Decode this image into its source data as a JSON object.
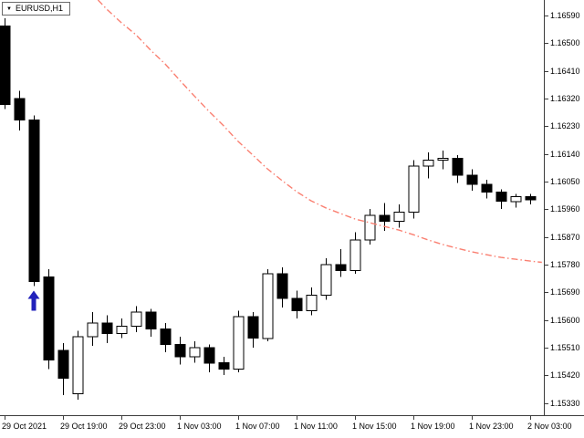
{
  "header": {
    "symbol_label": "EURUSD,H1",
    "dropdown_glyph": "▼"
  },
  "chart_data": {
    "type": "candlestick",
    "title": "EURUSD,H1",
    "symbol": "EURUSD",
    "timeframe": "H1",
    "grid": false,
    "background": "#ffffff",
    "colors": {
      "bull": "#ffffff",
      "bear": "#000000",
      "outline": "#000000",
      "axis_line": "#3c3c3c",
      "axis_text": "#000000"
    },
    "price_axis": {
      "min": 1.1529,
      "max": 1.1664,
      "labels": [
        "1.16590",
        "1.16500",
        "1.16410",
        "1.16320",
        "1.16230",
        "1.16140",
        "1.16050",
        "1.15960",
        "1.15870",
        "1.15780",
        "1.15690",
        "1.15600",
        "1.15510",
        "1.15420",
        "1.15330"
      ]
    },
    "time_axis": {
      "labels": [
        {
          "text": "29 Oct 2021",
          "bar": 0
        },
        {
          "text": "29 Oct 19:00",
          "bar": 4
        },
        {
          "text": "29 Oct 23:00",
          "bar": 8
        },
        {
          "text": "1 Nov 03:00",
          "bar": 12
        },
        {
          "text": "1 Nov 07:00",
          "bar": 16
        },
        {
          "text": "1 Nov 11:00",
          "bar": 20
        },
        {
          "text": "1 Nov 15:00",
          "bar": 24
        },
        {
          "text": "1 Nov 19:00",
          "bar": 28
        },
        {
          "text": "1 Nov 23:00",
          "bar": 32
        },
        {
          "text": "2 Nov 03:00",
          "bar": 36
        }
      ]
    },
    "candles": [
      {
        "t": "29 Oct 15:00",
        "o": 1.16555,
        "h": 1.1658,
        "l": 1.16285,
        "c": 1.163
      },
      {
        "t": "29 Oct 16:00",
        "o": 1.1632,
        "h": 1.16345,
        "l": 1.16215,
        "c": 1.1625
      },
      {
        "t": "29 Oct 17:00",
        "o": 1.1625,
        "h": 1.16265,
        "l": 1.1571,
        "c": 1.15725
      },
      {
        "t": "29 Oct 18:00",
        "o": 1.1574,
        "h": 1.15765,
        "l": 1.1544,
        "c": 1.1547
      },
      {
        "t": "29 Oct 19:00",
        "o": 1.155,
        "h": 1.15525,
        "l": 1.15355,
        "c": 1.1541
      },
      {
        "t": "29 Oct 20:00",
        "o": 1.1536,
        "h": 1.15565,
        "l": 1.1534,
        "c": 1.15545
      },
      {
        "t": "29 Oct 21:00",
        "o": 1.15545,
        "h": 1.15625,
        "l": 1.15515,
        "c": 1.1559
      },
      {
        "t": "29 Oct 22:00",
        "o": 1.1559,
        "h": 1.15615,
        "l": 1.15525,
        "c": 1.15555
      },
      {
        "t": "29 Oct 23:00",
        "o": 1.15555,
        "h": 1.15605,
        "l": 1.1554,
        "c": 1.1558
      },
      {
        "t": "1 Nov 00:00",
        "o": 1.1558,
        "h": 1.15645,
        "l": 1.1556,
        "c": 1.15625
      },
      {
        "t": "1 Nov 01:00",
        "o": 1.15625,
        "h": 1.15635,
        "l": 1.15545,
        "c": 1.1557
      },
      {
        "t": "1 Nov 02:00",
        "o": 1.1557,
        "h": 1.1559,
        "l": 1.15495,
        "c": 1.1552
      },
      {
        "t": "1 Nov 03:00",
        "o": 1.1552,
        "h": 1.15545,
        "l": 1.15455,
        "c": 1.1548
      },
      {
        "t": "1 Nov 04:00",
        "o": 1.1548,
        "h": 1.1553,
        "l": 1.1546,
        "c": 1.1551
      },
      {
        "t": "1 Nov 05:00",
        "o": 1.1551,
        "h": 1.1552,
        "l": 1.1543,
        "c": 1.1546
      },
      {
        "t": "1 Nov 06:00",
        "o": 1.1546,
        "h": 1.1548,
        "l": 1.1542,
        "c": 1.1544
      },
      {
        "t": "1 Nov 07:00",
        "o": 1.1544,
        "h": 1.1563,
        "l": 1.1543,
        "c": 1.1561
      },
      {
        "t": "1 Nov 08:00",
        "o": 1.1561,
        "h": 1.15625,
        "l": 1.1551,
        "c": 1.1554
      },
      {
        "t": "1 Nov 09:00",
        "o": 1.1554,
        "h": 1.15765,
        "l": 1.1553,
        "c": 1.1575
      },
      {
        "t": "1 Nov 10:00",
        "o": 1.1575,
        "h": 1.1577,
        "l": 1.1564,
        "c": 1.1567
      },
      {
        "t": "1 Nov 11:00",
        "o": 1.1567,
        "h": 1.15695,
        "l": 1.15605,
        "c": 1.1563
      },
      {
        "t": "1 Nov 12:00",
        "o": 1.1563,
        "h": 1.15705,
        "l": 1.15615,
        "c": 1.1568
      },
      {
        "t": "1 Nov 13:00",
        "o": 1.1568,
        "h": 1.158,
        "l": 1.15665,
        "c": 1.1578
      },
      {
        "t": "1 Nov 14:00",
        "o": 1.1578,
        "h": 1.1583,
        "l": 1.1574,
        "c": 1.1576
      },
      {
        "t": "1 Nov 15:00",
        "o": 1.1576,
        "h": 1.15885,
        "l": 1.1575,
        "c": 1.1586
      },
      {
        "t": "1 Nov 16:00",
        "o": 1.1586,
        "h": 1.1596,
        "l": 1.15845,
        "c": 1.1594
      },
      {
        "t": "1 Nov 17:00",
        "o": 1.1594,
        "h": 1.1598,
        "l": 1.1589,
        "c": 1.1592
      },
      {
        "t": "1 Nov 18:00",
        "o": 1.1592,
        "h": 1.15975,
        "l": 1.159,
        "c": 1.1595
      },
      {
        "t": "1 Nov 19:00",
        "o": 1.1595,
        "h": 1.1612,
        "l": 1.1593,
        "c": 1.161
      },
      {
        "t": "1 Nov 20:00",
        "o": 1.161,
        "h": 1.16145,
        "l": 1.1606,
        "c": 1.1612
      },
      {
        "t": "1 Nov 21:00",
        "o": 1.1612,
        "h": 1.1615,
        "l": 1.1609,
        "c": 1.16125
      },
      {
        "t": "1 Nov 22:00",
        "o": 1.16125,
        "h": 1.16135,
        "l": 1.16045,
        "c": 1.1607
      },
      {
        "t": "1 Nov 23:00",
        "o": 1.1607,
        "h": 1.1609,
        "l": 1.1602,
        "c": 1.1604
      },
      {
        "t": "2 Nov 00:00",
        "o": 1.1604,
        "h": 1.16055,
        "l": 1.15995,
        "c": 1.16015
      },
      {
        "t": "2 Nov 01:00",
        "o": 1.16015,
        "h": 1.16025,
        "l": 1.1596,
        "c": 1.15985
      },
      {
        "t": "2 Nov 02:00",
        "o": 1.15985,
        "h": 1.1601,
        "l": 1.15965,
        "c": 1.16
      },
      {
        "t": "2 Nov 03:00",
        "o": 1.16,
        "h": 1.1601,
        "l": 1.15975,
        "c": 1.1599
      }
    ],
    "overlays": {
      "moving_average": {
        "name": "moving-average",
        "line_style": "dash-dot",
        "color": "#fa8072",
        "points": [
          [
            6.4,
            1.1664
          ],
          [
            7,
            1.1661
          ],
          [
            8,
            1.16566
          ],
          [
            9,
            1.16527
          ],
          [
            10,
            1.16477
          ],
          [
            11,
            1.16432
          ],
          [
            12,
            1.16379
          ],
          [
            13,
            1.16328
          ],
          [
            14,
            1.16278
          ],
          [
            15,
            1.16231
          ],
          [
            16,
            1.1618
          ],
          [
            17,
            1.16136
          ],
          [
            18,
            1.16091
          ],
          [
            19,
            1.16053
          ],
          [
            20,
            1.16017
          ],
          [
            21,
            1.15987
          ],
          [
            22,
            1.15964
          ],
          [
            23,
            1.15946
          ],
          [
            24,
            1.15928
          ],
          [
            25,
            1.15916
          ],
          [
            26,
            1.15904
          ],
          [
            27,
            1.15892
          ],
          [
            28,
            1.15877
          ],
          [
            29,
            1.1586
          ],
          [
            30,
            1.15845
          ],
          [
            31,
            1.15833
          ],
          [
            32,
            1.15821
          ],
          [
            33,
            1.15812
          ],
          [
            34,
            1.15803
          ],
          [
            35,
            1.15797
          ],
          [
            36,
            1.15791
          ],
          [
            36.8,
            1.15787
          ]
        ]
      },
      "buy_arrow": {
        "type": "up-arrow",
        "bar": 2,
        "price": 1.15695,
        "color": "#2222bb"
      }
    }
  }
}
